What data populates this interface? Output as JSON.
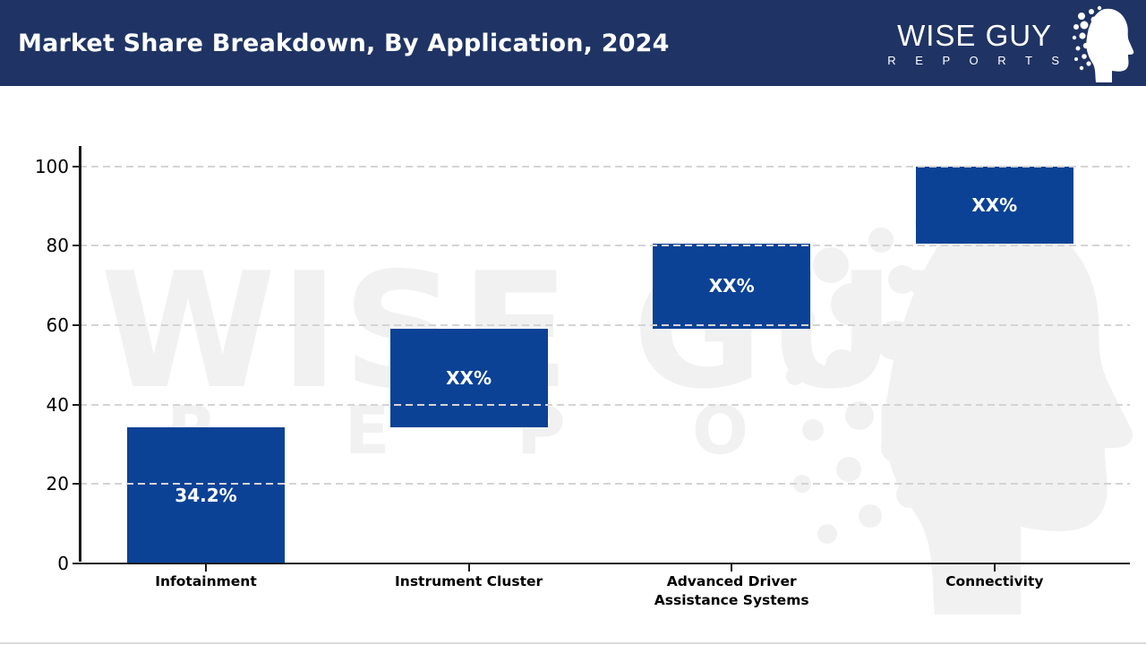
{
  "header": {
    "title": "Market Share Breakdown, By Application, 2024",
    "logo": {
      "line1": "WISE GUY",
      "line2": "R E P O R T S"
    }
  },
  "watermark": {
    "line1": "WISE GUY",
    "line2": "R E P O R T S"
  },
  "chart_data": {
    "type": "bar",
    "subtype": "waterfall",
    "title": "Market Share Breakdown, By Application, 2024",
    "categories": [
      "Infotainment",
      "Instrument Cluster",
      "Advanced Driver Assistance Systems",
      "Connectivity"
    ],
    "segments": [
      {
        "category": "Infotainment",
        "start": 0,
        "end": 34.2,
        "label": "34.2%"
      },
      {
        "category": "Instrument Cluster",
        "start": 34.2,
        "end": 59.2,
        "label": "XX%"
      },
      {
        "category": "Advanced Driver Assistance Systems",
        "start": 59.2,
        "end": 80.6,
        "label": "XX%"
      },
      {
        "category": "Connectivity",
        "start": 80.6,
        "end": 100,
        "label": "XX%"
      }
    ],
    "yticks": [
      0,
      20,
      40,
      60,
      80,
      100
    ],
    "ylim": [
      0,
      105
    ],
    "xlabel": "",
    "ylabel": "",
    "legend": "none",
    "grid": "horizontal-dashed",
    "bar_color": "#0b4296",
    "bar_label_color": "#ffffff",
    "axis_color": "#1a1a1a",
    "grid_color": "#d4d4d4",
    "header_bg_color": "#1f3464",
    "watermark_color": "#f1f1f2"
  }
}
